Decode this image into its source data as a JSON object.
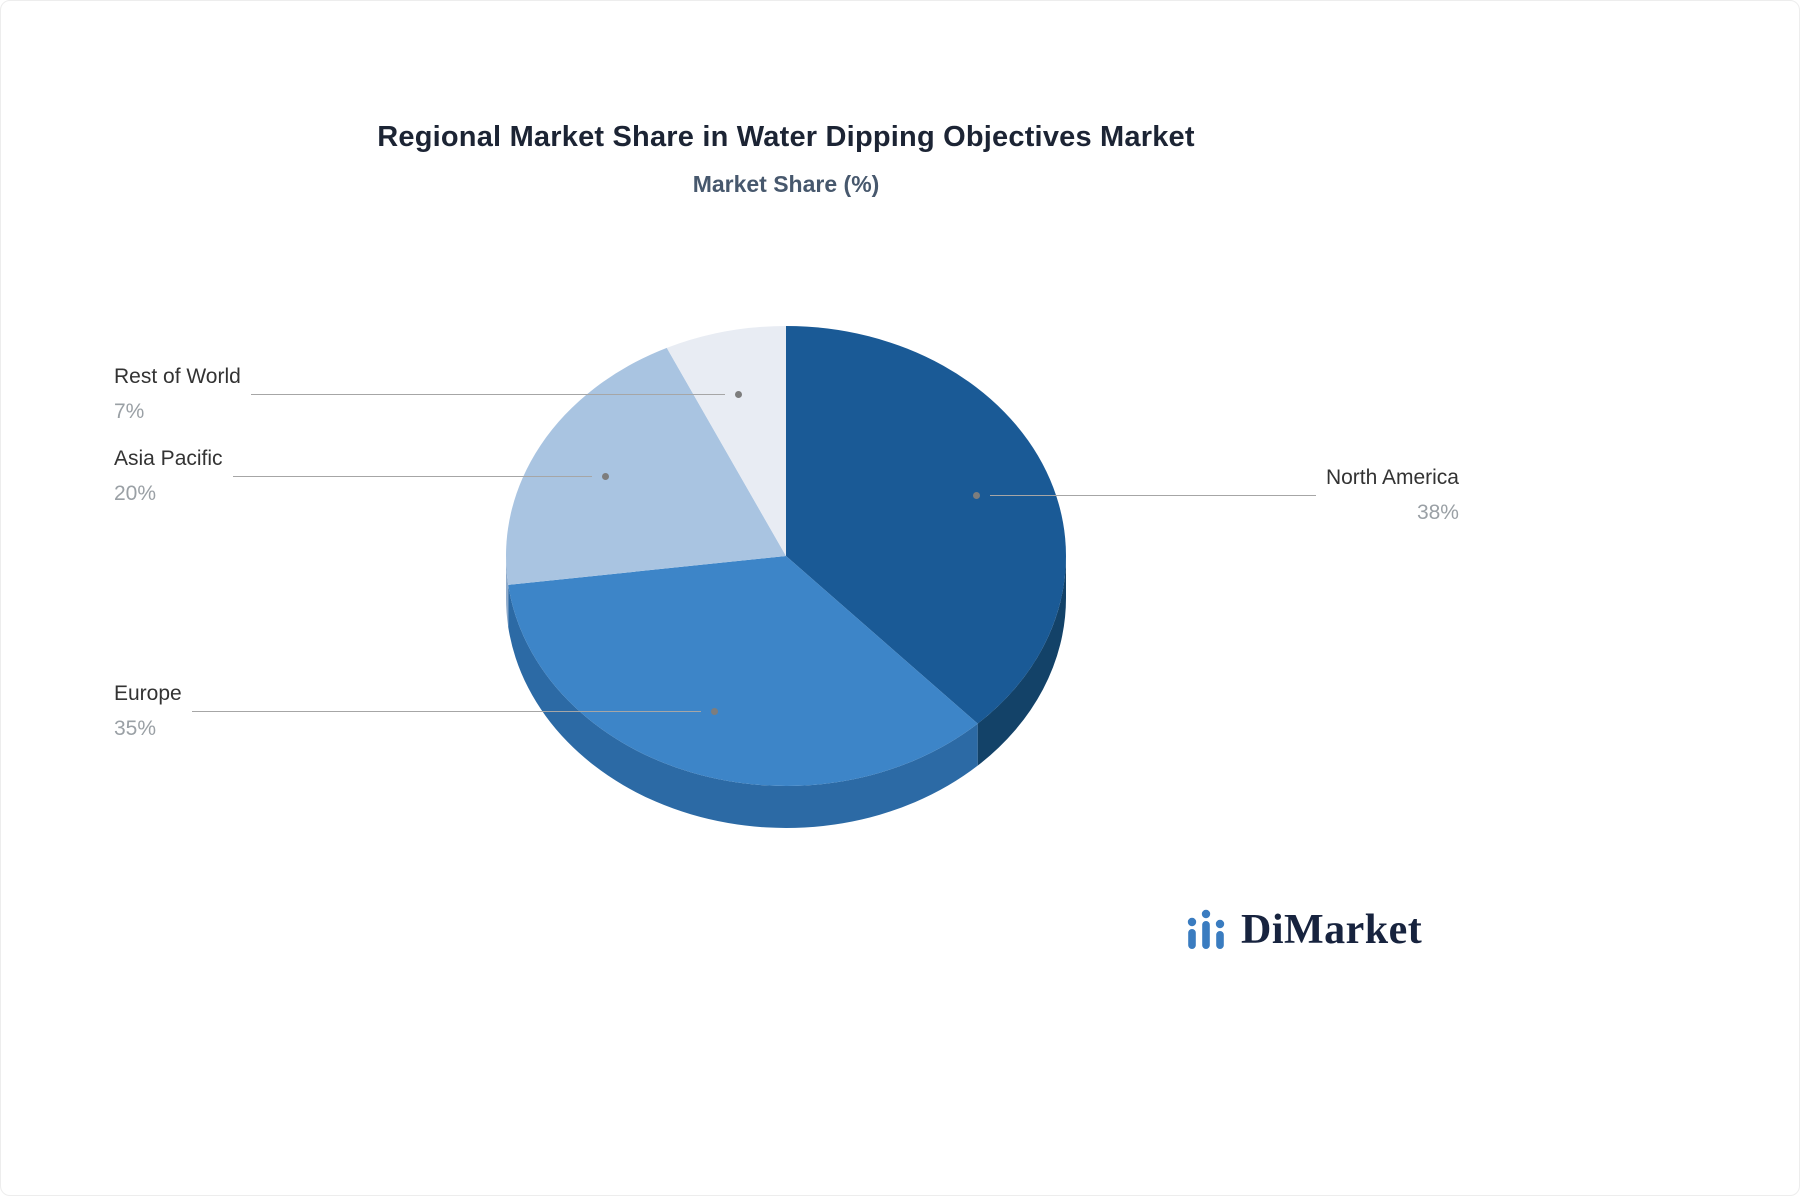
{
  "chart_data": {
    "type": "pie",
    "title": "Regional Market Share in Water Dipping Objectives Market",
    "subtitle": "Market Share (%)",
    "unit": "%",
    "style": "3d",
    "start_angle_deg": -90,
    "direction": "clockwise",
    "legend_position": "callouts",
    "slices": [
      {
        "label": "North America",
        "value": 38,
        "display_value": "38%",
        "color": "#1a5a96",
        "side_color": "#134268"
      },
      {
        "label": "Europe",
        "value": 35,
        "display_value": "35%",
        "color": "#3d85c8",
        "side_color": "#2c6aa5"
      },
      {
        "label": "Asia Pacific",
        "value": 20,
        "display_value": "20%",
        "color": "#a9c4e1",
        "side_color": "#8fabcb"
      },
      {
        "label": "Rest of World",
        "value": 7,
        "display_value": "7%",
        "color": "#e8ecf3",
        "side_color": "#c9d2df"
      }
    ],
    "callout_label_color": "#333333",
    "callout_value_color": "#9aa0a5",
    "leader_line_color": "#a6a6a6"
  },
  "branding": {
    "logo_text": "DiMarket",
    "logo_icon": "bar-chart-dots-icon",
    "logo_text_color": "#17233e",
    "logo_icon_color": "#3a7cc0"
  }
}
